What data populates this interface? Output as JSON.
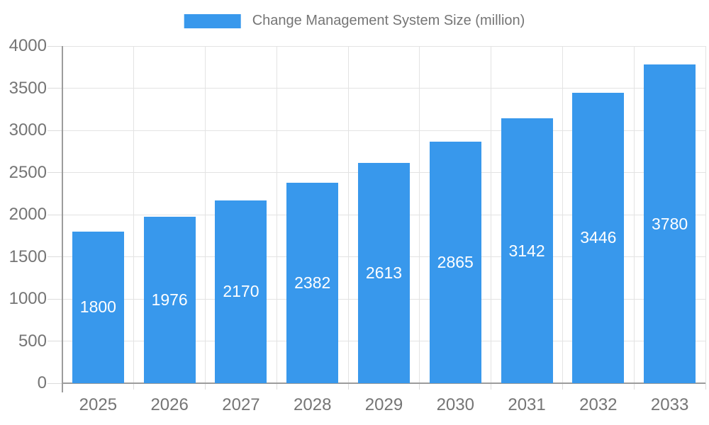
{
  "chart_data": {
    "type": "bar",
    "title": "Change Management System Size (million)",
    "categories": [
      "2025",
      "2026",
      "2027",
      "2028",
      "2029",
      "2030",
      "2031",
      "2032",
      "2033"
    ],
    "values": [
      1800,
      1976,
      2170,
      2382,
      2613,
      2865,
      3142,
      3446,
      3780
    ],
    "value_labels": [
      "1800",
      "1976",
      "2170",
      "2382",
      "2613",
      "2865",
      "3142",
      "3446",
      "3780"
    ],
    "xlabel": "",
    "ylabel": "",
    "ylim": [
      0,
      4000
    ],
    "yticks": [
      0,
      500,
      1000,
      1500,
      2000,
      2500,
      3000,
      3500,
      4000
    ],
    "ytick_labels": [
      "0",
      "500",
      "1000",
      "1500",
      "2000",
      "2500",
      "3000",
      "3500",
      "4000"
    ],
    "grid": true,
    "legend_position": "top",
    "colors": {
      "bar": "#3898EC",
      "value_label": "#FFFFFF",
      "axis_text": "#757575",
      "legend_text": "#757575",
      "gridline": "#E3E3E3",
      "axis_line": "#9C9C9C",
      "tick": "#DCDCDC",
      "background": "#FFFFFF"
    }
  }
}
